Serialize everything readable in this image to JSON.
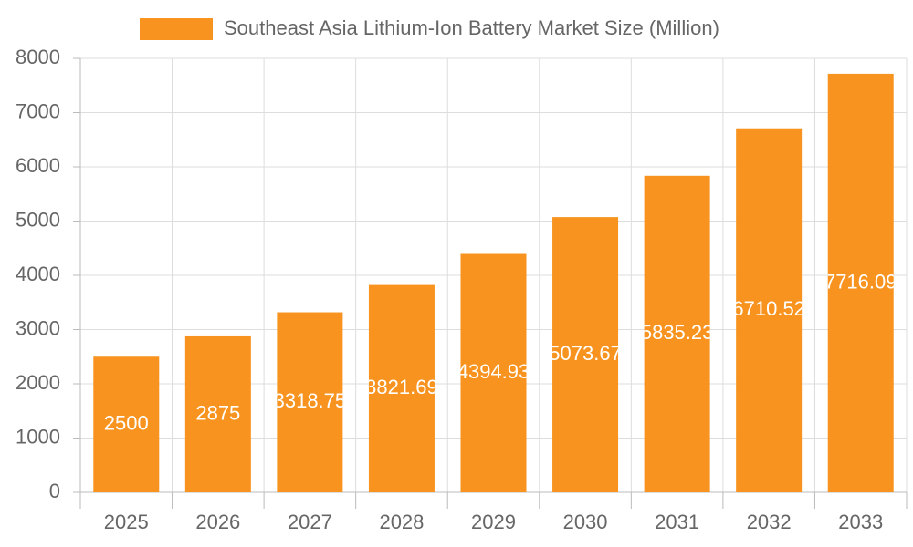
{
  "chart_data": {
    "type": "bar",
    "categories": [
      "2025",
      "2026",
      "2027",
      "2028",
      "2029",
      "2030",
      "2031",
      "2032",
      "2033"
    ],
    "series": [
      {
        "name": "Southeast Asia Lithium-Ion Battery Market Size (Million)",
        "color": "#f7931e",
        "values": [
          2500,
          2875,
          3318.75,
          3821.69,
          4394.93,
          5073.67,
          5835.23,
          6710.52,
          7716.09
        ]
      }
    ],
    "ylim": [
      0,
      8000
    ],
    "yticks": [
      0,
      1000,
      2000,
      3000,
      4000,
      5000,
      6000,
      7000,
      8000
    ],
    "grid": true,
    "legend": "top"
  }
}
